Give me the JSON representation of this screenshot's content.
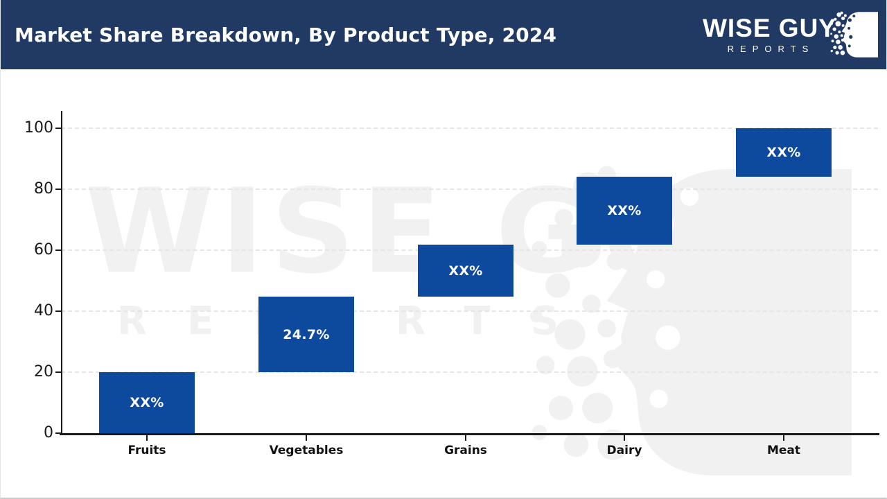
{
  "header": {
    "title": "Market Share Breakdown, By Product Type, 2024",
    "logo": {
      "line1": "WISE GUY",
      "line2": "REPORTS"
    },
    "bg_color": "#213a64"
  },
  "watermark": {
    "line1": "WISE GUY",
    "line2": "REPORTS"
  },
  "chart_data": {
    "type": "bar",
    "variant": "waterfall",
    "title": "Market Share Breakdown, By Product Type, 2024",
    "categories": [
      "Fruits",
      "Vegetables",
      "Grains",
      "Dairy",
      "Meat"
    ],
    "segments": [
      {
        "category": "Fruits",
        "start": 0,
        "end": 20,
        "label": "XX%"
      },
      {
        "category": "Vegetables",
        "start": 20,
        "end": 44.7,
        "label": "24.7%"
      },
      {
        "category": "Grains",
        "start": 44.7,
        "end": 61.8,
        "label": "XX%"
      },
      {
        "category": "Dairy",
        "start": 61.8,
        "end": 84,
        "label": "XX%"
      },
      {
        "category": "Meat",
        "start": 84,
        "end": 100,
        "label": "XX%"
      }
    ],
    "yticks": [
      0,
      20,
      40,
      60,
      80,
      100
    ],
    "ylim": [
      0,
      105
    ],
    "grid": "horizontal-dashed",
    "legend": "none",
    "bar_color": "#0d4a9e",
    "bar_label_color": "#ffffff",
    "axis_color": "#1a1a1a"
  }
}
